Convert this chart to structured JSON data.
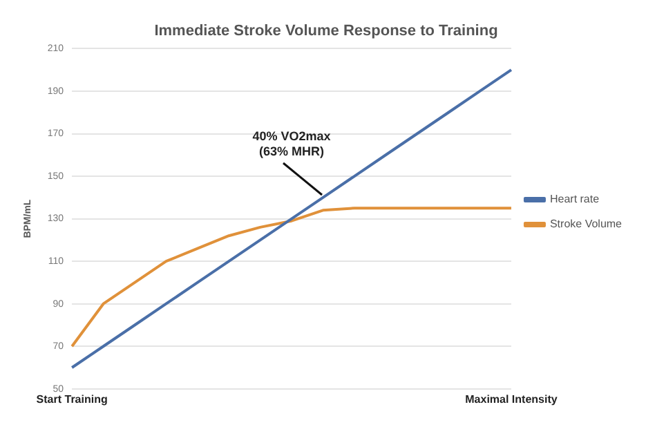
{
  "chart_data": {
    "type": "line",
    "title": "Immediate Stroke Volume Response to Training",
    "ylabel": "BPM/mL",
    "categories": [
      "Start Training",
      null,
      null,
      null,
      null,
      null,
      null,
      null,
      null,
      null,
      null,
      null,
      null,
      null,
      "Maximal Intensity"
    ],
    "ylim": [
      50,
      210
    ],
    "yticks": [
      50,
      70,
      90,
      110,
      130,
      150,
      170,
      190,
      210
    ],
    "grid": "y",
    "legend": "right",
    "marker": "none",
    "line_style": "solid",
    "series": [
      {
        "name": "Heart rate",
        "color": "#4a6fa8",
        "values": [
          60,
          70,
          80,
          90,
          100,
          110,
          120,
          130,
          140,
          150,
          160,
          170,
          180,
          190,
          200
        ]
      },
      {
        "name": "Stroke Volume",
        "color": "#e0913a",
        "values": [
          70,
          90,
          100,
          110,
          116,
          122,
          126,
          129,
          134,
          135,
          135,
          135,
          135,
          135,
          135
        ]
      }
    ],
    "annotations": [
      "40% VO2max\n(63% MHR)"
    ]
  }
}
